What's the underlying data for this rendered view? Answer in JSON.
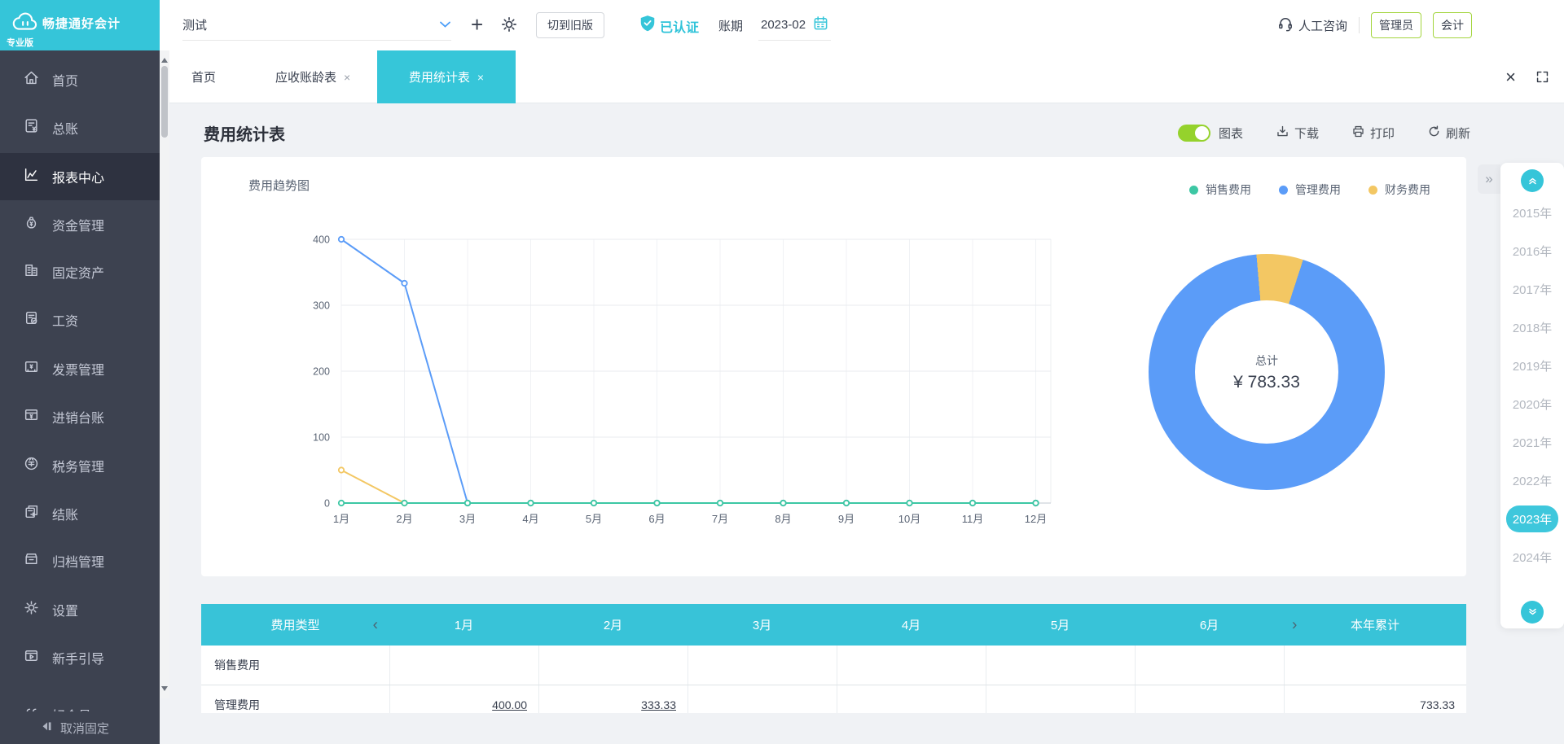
{
  "brand": {
    "title": "畅捷通好会计",
    "subtitle": "专业版"
  },
  "sidebar": {
    "items": [
      {
        "id": "home",
        "icon": "home",
        "label": "首页",
        "active": false
      },
      {
        "id": "general-ledger",
        "icon": "ledger",
        "label": "总账",
        "active": false
      },
      {
        "id": "report-center",
        "icon": "report",
        "label": "报表中心",
        "active": true
      },
      {
        "id": "funds",
        "icon": "bag",
        "label": "资金管理",
        "active": false
      },
      {
        "id": "fixed-assets",
        "icon": "building",
        "label": "固定资产",
        "active": false
      },
      {
        "id": "payroll",
        "icon": "payroll",
        "label": "工资",
        "active": false
      },
      {
        "id": "invoice",
        "icon": "invoice",
        "label": "发票管理",
        "active": false
      },
      {
        "id": "inventory-ledger",
        "icon": "inventory",
        "label": "进销台账",
        "active": false
      },
      {
        "id": "tax",
        "icon": "tax",
        "label": "税务管理",
        "active": false
      },
      {
        "id": "closing",
        "icon": "closing",
        "label": "结账",
        "active": false
      },
      {
        "id": "archive",
        "icon": "archive",
        "label": "归档管理",
        "active": false
      },
      {
        "id": "settings",
        "icon": "gear",
        "label": "设置",
        "active": false
      },
      {
        "id": "beginner-guide",
        "icon": "video",
        "label": "新手引导",
        "active": false
      },
      {
        "id": "member",
        "icon": "member",
        "label": "好会员",
        "active": false
      }
    ],
    "unpin_label": "取消固定"
  },
  "topbar": {
    "account_name": "测试",
    "switch_old_label": "切到旧版",
    "certified_label": "已认证",
    "period_label": "账期",
    "period_value": "2023-02",
    "support_label": "人工咨询",
    "badges": [
      "管理员",
      "会计"
    ]
  },
  "tabs": {
    "items": [
      {
        "label": "首页",
        "closable": false,
        "active": false
      },
      {
        "label": "应收账龄表",
        "closable": true,
        "active": false
      },
      {
        "label": "费用统计表",
        "closable": true,
        "active": true
      }
    ],
    "close_glyph": "×"
  },
  "page": {
    "title": "费用统计表",
    "chart_toggle_label": "图表",
    "download_label": "下载",
    "print_label": "打印",
    "refresh_label": "刷新"
  },
  "chart_data": [
    {
      "type": "line",
      "title": "费用趋势图",
      "categories": [
        "1月",
        "2月",
        "3月",
        "4月",
        "5月",
        "6月",
        "7月",
        "8月",
        "9月",
        "10月",
        "11月",
        "12月"
      ],
      "series": [
        {
          "name": "销售费用",
          "color": "#3dc7a4",
          "values": [
            0,
            0,
            0,
            0,
            0,
            0,
            0,
            0,
            0,
            0,
            0,
            0
          ]
        },
        {
          "name": "管理费用",
          "color": "#5b9cf8",
          "values": [
            400,
            333.33,
            0,
            0,
            0,
            0,
            0,
            0,
            0,
            0,
            0,
            0
          ]
        },
        {
          "name": "财务费用",
          "color": "#f3c763",
          "values": [
            50,
            0,
            0,
            0,
            0,
            0,
            0,
            0,
            0,
            0,
            0,
            0
          ]
        }
      ],
      "ylim": [
        0,
        400
      ],
      "yticks": [
        0,
        100,
        200,
        300,
        400
      ],
      "grid": true,
      "legend_position": "top-right"
    },
    {
      "type": "donut",
      "center_label": "总计",
      "center_value": "¥ 783.33",
      "slices": [
        {
          "name": "财务费用",
          "value": 50,
          "color": "#f3c763"
        },
        {
          "name": "管理费用",
          "value": 733.33,
          "color": "#5b9cf8"
        },
        {
          "name": "销售费用",
          "value": 0,
          "color": "#3dc7a4"
        }
      ]
    }
  ],
  "table": {
    "columns": [
      "费用类型",
      "1月",
      "2月",
      "3月",
      "4月",
      "5月",
      "6月",
      "本年累计"
    ],
    "prev_glyph": "‹",
    "next_glyph": "›",
    "rows": [
      {
        "name": "销售费用",
        "values": [
          "",
          "",
          "",
          "",
          "",
          "",
          ""
        ],
        "links": [
          false,
          false,
          false,
          false,
          false,
          false,
          false
        ]
      },
      {
        "name": "管理费用",
        "values": [
          "400.00",
          "333.33",
          "",
          "",
          "",
          "",
          "733.33"
        ],
        "links": [
          true,
          true,
          false,
          false,
          false,
          false,
          false
        ]
      }
    ]
  },
  "year_panel": {
    "years": [
      "2015年",
      "2016年",
      "2017年",
      "2018年",
      "2019年",
      "2020年",
      "2021年",
      "2022年",
      "2023年",
      "2024年"
    ],
    "selected": "2023年"
  }
}
